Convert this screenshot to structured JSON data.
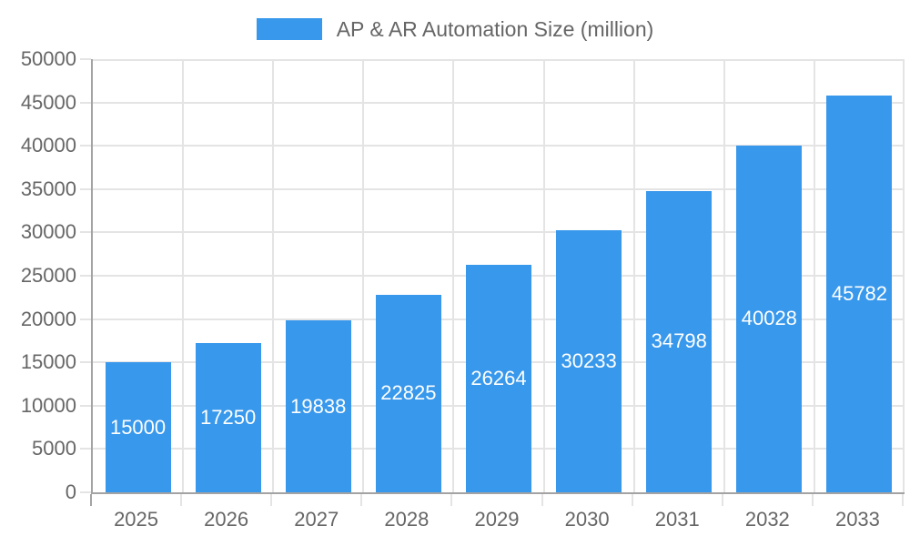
{
  "chart_data": {
    "type": "bar",
    "title": "AP & AR Automation Size (million)",
    "legend_position": "top",
    "categories": [
      "2025",
      "2026",
      "2027",
      "2028",
      "2029",
      "2030",
      "2031",
      "2032",
      "2033"
    ],
    "series": [
      {
        "name": "AP & AR Automation Size (million)",
        "values": [
          15000,
          17250,
          19838,
          22825,
          26264,
          30233,
          34798,
          40028,
          45782
        ]
      }
    ],
    "data_labels": [
      "15000",
      "17250",
      "19838",
      "22825",
      "26264",
      "30233",
      "34798",
      "40028",
      "45782"
    ],
    "xlabel": "",
    "ylabel": "",
    "ylim": [
      0,
      50000
    ],
    "ytick_step": 5000,
    "yticks": [
      "0",
      "5000",
      "10000",
      "15000",
      "20000",
      "25000",
      "30000",
      "35000",
      "40000",
      "45000",
      "50000"
    ],
    "grid": true,
    "colors": {
      "bar": "#3898EC",
      "bar_label_text": "#FFFFFF",
      "tick_text": "#666666",
      "legend_text": "#666666",
      "grid_line": "#E4E4E4",
      "axis_line": "#A3A3A3",
      "background": "#FFFFFF"
    }
  }
}
